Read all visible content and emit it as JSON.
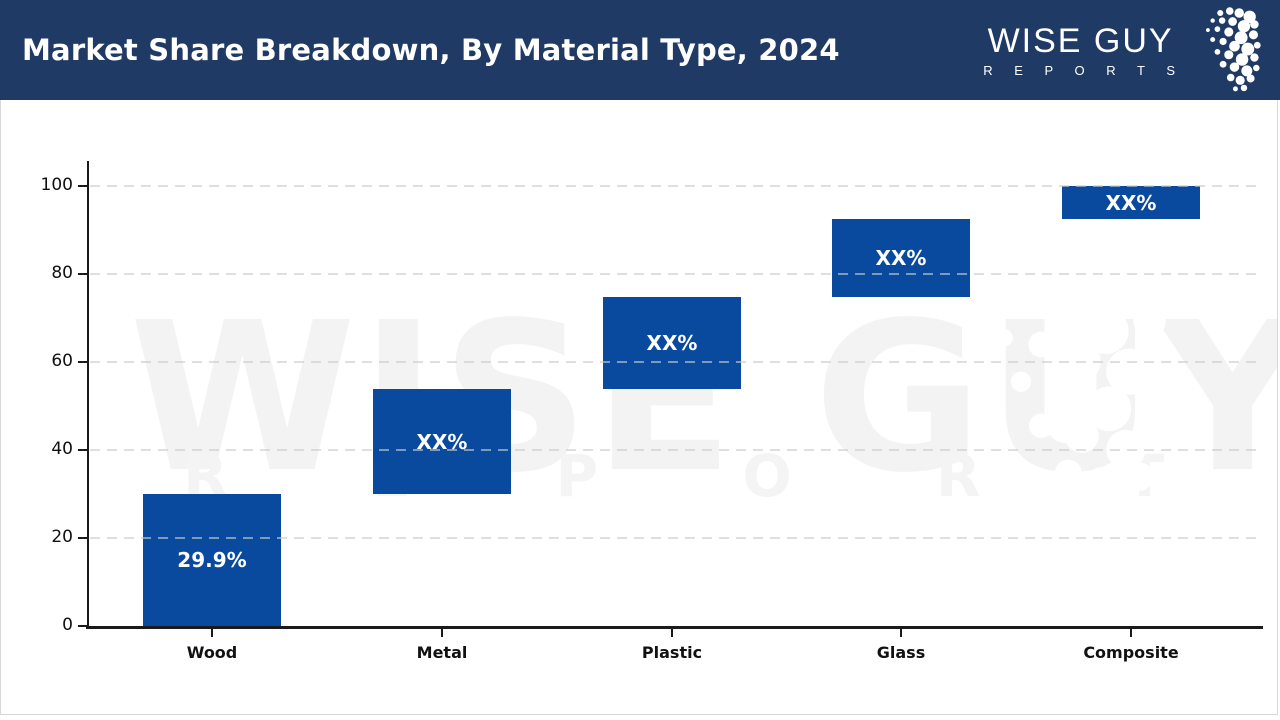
{
  "header": {
    "title": "Market Share Breakdown, By Material Type, 2024",
    "logo": {
      "name": "WISE GUY",
      "tagline": "R E P O R T S"
    }
  },
  "watermark": {
    "title": "WISE GUY",
    "tagline": "R E P O R T S"
  },
  "colors": {
    "header_bg": "#203a66",
    "bar": "#0a4a9e",
    "bar_label": "#ffffff",
    "axis": "#1a1a1a",
    "gridline": "#e2e2e2",
    "watermark": "#f3f3f3"
  },
  "chart_data": {
    "type": "bar",
    "variant": "waterfall",
    "title": "Market Share Breakdown, By Material Type, 2024",
    "xlabel": "",
    "ylabel": "",
    "ylim": [
      0,
      105
    ],
    "yticks": [
      0,
      20,
      40,
      60,
      80,
      100
    ],
    "grid": "horizontal-dashed",
    "legend": "none",
    "categories": [
      "Wood",
      "Metal",
      "Plastic",
      "Glass",
      "Composite"
    ],
    "segments": [
      {
        "category": "Wood",
        "start": 0,
        "end": 29.9,
        "label": "29.9%"
      },
      {
        "category": "Metal",
        "start": 29.9,
        "end": 53.9,
        "label": "XX%"
      },
      {
        "category": "Plastic",
        "start": 53.9,
        "end": 74.7,
        "label": "XX%"
      },
      {
        "category": "Glass",
        "start": 74.7,
        "end": 92.5,
        "label": "XX%"
      },
      {
        "category": "Composite",
        "start": 92.5,
        "end": 100,
        "label": "XX%"
      }
    ]
  }
}
